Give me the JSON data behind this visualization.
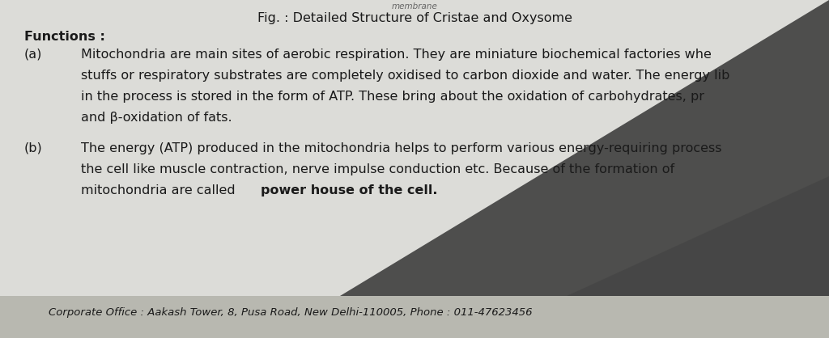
{
  "bg_color": "#c8c8c4",
  "paper_color": "#dcdcd8",
  "top_text": "membrane",
  "title": "Fig. : Detailed Structure of Cristae and Oxysome",
  "functions_label": "Functions :",
  "para_a_label": "(a)",
  "para_a_line1": "Mitochondria are main sites of aerobic respiration. They are miniature biochemical factories whe",
  "para_a_line2": "stuffs or respiratory substrates are completely oxidised to carbon dioxide and water. The energy lib",
  "para_a_line3": "in the process is stored in the form of ATP. These bring about the oxidation of carbohydrates, pr",
  "para_a_line4": "and β-oxidation of fats.",
  "para_b_label": "(b)",
  "para_b_line1": "The energy (ATP) produced in the mitochondria helps to perform various energy-requiring process",
  "para_b_line2": "the cell like muscle contraction, nerve impulse conduction etc. Because of the formation of",
  "para_b_line3_normal": "mitochondria are called ",
  "para_b_line3_bold": "power house of the cell.",
  "footer_text": "Corporate Office : Aakash Tower, 8, Pusa Road, New Delhi-110005, Phone : 011-47623456",
  "footer_bg": "#b8b8b0",
  "text_color": "#1a1a1a",
  "font_size": 11.5,
  "title_font_size": 11.5,
  "footer_font_size": 9.5
}
